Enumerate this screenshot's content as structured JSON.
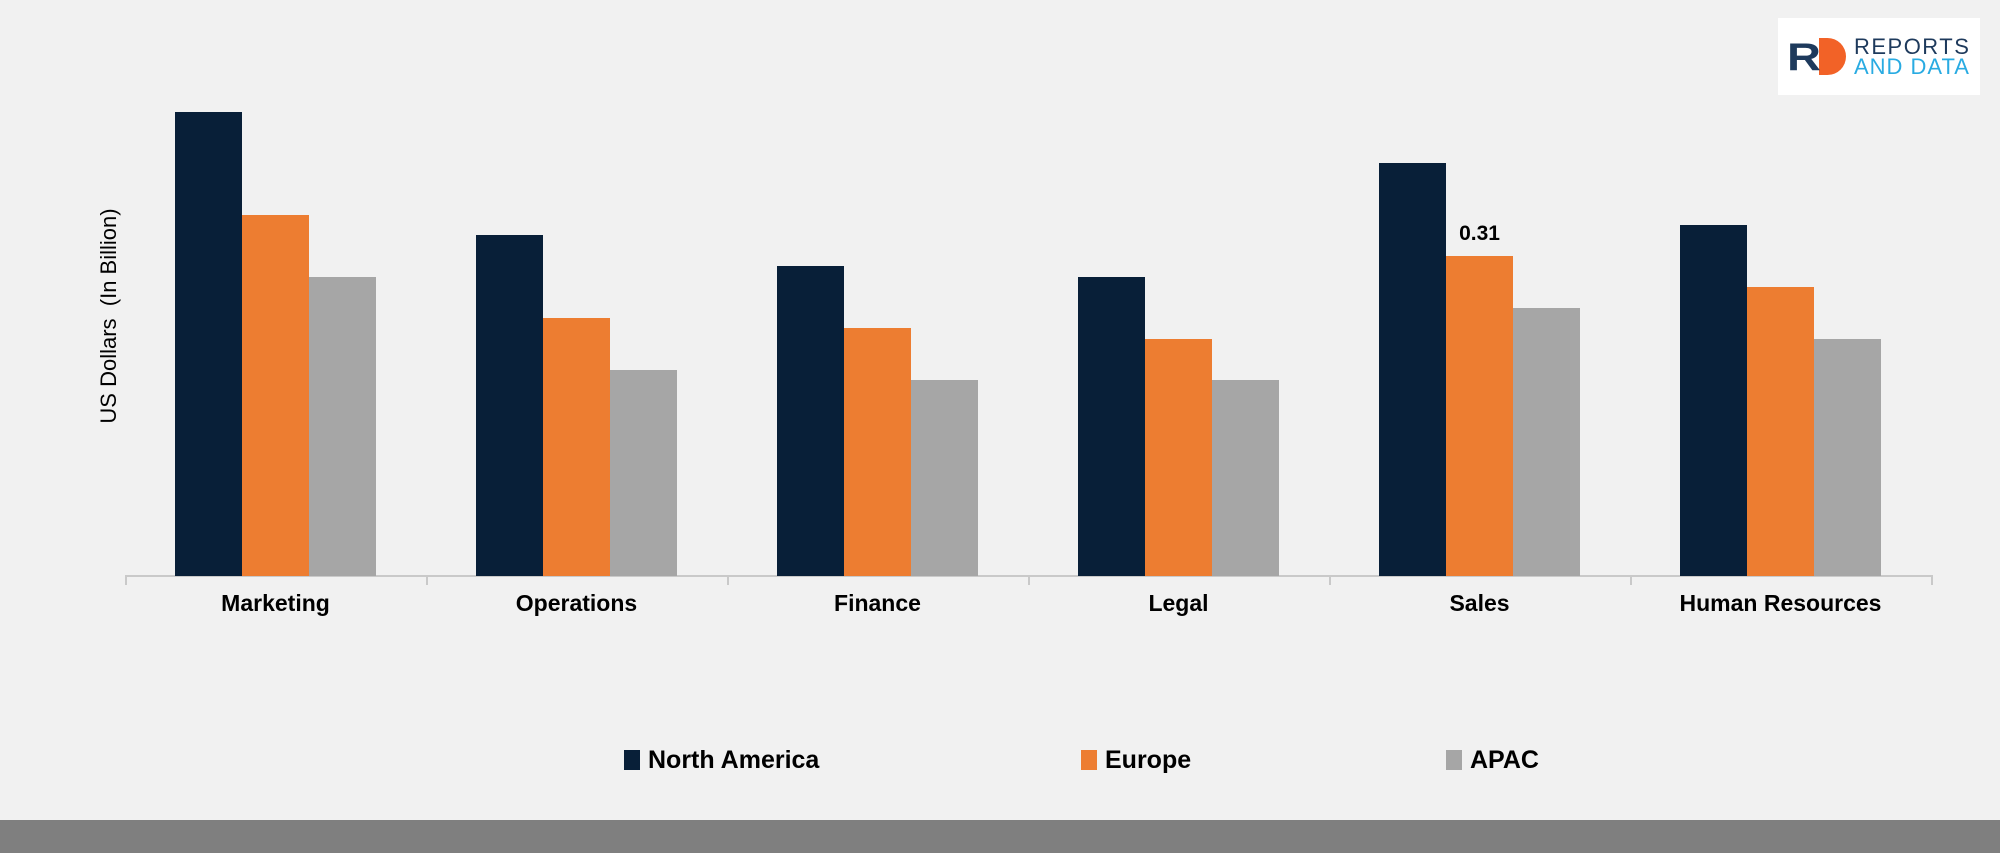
{
  "page": {
    "background_color": "#f1f1f1",
    "footer_bar_color": "#7f7f7f"
  },
  "logo": {
    "mark_letter": "R",
    "line1": "REPORTS",
    "line2": "AND DATA",
    "colors": {
      "navy": "#1e3a5c",
      "light_blue": "#29abe2",
      "orange": "#f26227",
      "box_background": "#ffffff"
    }
  },
  "chart_data": {
    "type": "bar",
    "title": "",
    "xlabel": "",
    "ylabel": "US Dollars  (In Billion)",
    "categories": [
      "Marketing",
      "Operations",
      "Finance",
      "Legal",
      "Sales",
      "Human Resources"
    ],
    "series": [
      {
        "name": "North America",
        "color": "#081f38",
        "values": [
          0.45,
          0.33,
          0.3,
          0.29,
          0.4,
          0.34
        ]
      },
      {
        "name": "Europe",
        "color": "#ed7d31",
        "values": [
          0.35,
          0.25,
          0.24,
          0.23,
          0.31,
          0.28
        ]
      },
      {
        "name": "APAC",
        "color": "#a6a6a6",
        "values": [
          0.29,
          0.2,
          0.19,
          0.19,
          0.26,
          0.23
        ]
      }
    ],
    "data_labels": [
      {
        "series": "Europe",
        "category": "Sales",
        "text": "0.31"
      }
    ],
    "ylim": [
      0,
      0.56
    ],
    "grid": false,
    "legend_position": "bottom",
    "axis_color": "#c9c9c9"
  }
}
